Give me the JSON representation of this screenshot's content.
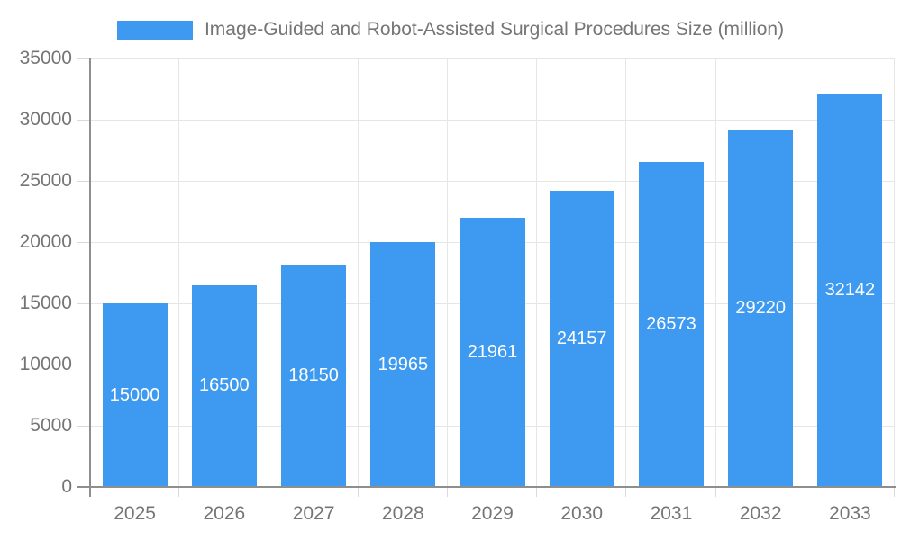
{
  "legend": {
    "label": "Image-Guided and Robot-Assisted Surgical Procedures Size (million)"
  },
  "chart_data": {
    "type": "bar",
    "title": "Image-Guided and Robot-Assisted Surgical Procedures Size (million)",
    "categories": [
      "2025",
      "2026",
      "2027",
      "2028",
      "2029",
      "2030",
      "2031",
      "2032",
      "2033"
    ],
    "values": [
      15000,
      16500,
      18150,
      19965,
      21961,
      24157,
      26573,
      29220,
      32142
    ],
    "value_labels": [
      "15000",
      "16500",
      "18150",
      "19965",
      "21961",
      "24157",
      "26573",
      "29220",
      "32142"
    ],
    "xlabel": "",
    "ylabel": "",
    "ylim": [
      0,
      35000
    ],
    "yticks": [
      0,
      5000,
      10000,
      15000,
      20000,
      25000,
      30000,
      35000
    ],
    "grid": true,
    "legend_position": "top-center",
    "colors": {
      "bar": "#3D9AF0",
      "grid": "#E6E6E6",
      "axis": "#8E8E8E",
      "tick": "#D9D9D9",
      "text": "#757575",
      "value_label": "#FFFFFF",
      "background": "#FFFFFF"
    }
  }
}
